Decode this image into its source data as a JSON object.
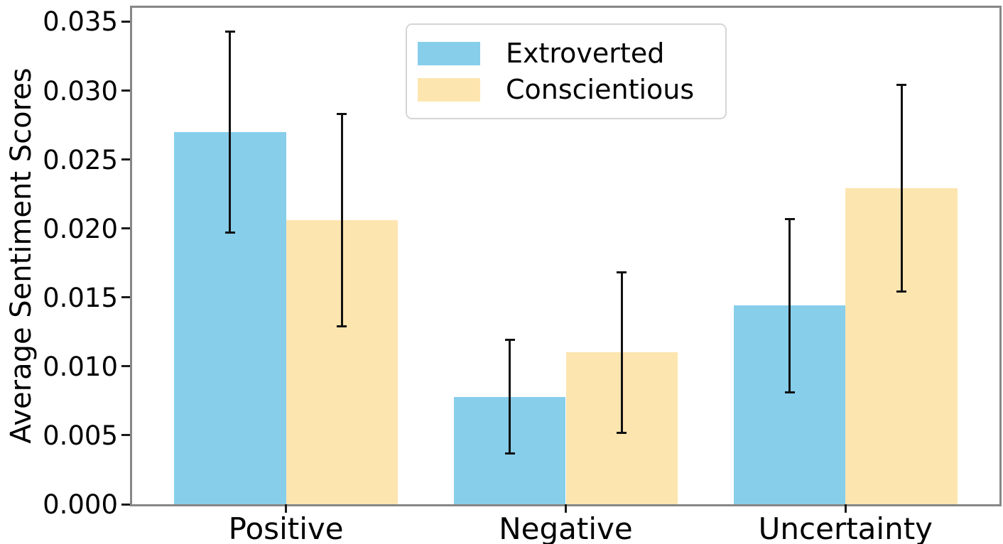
{
  "chart_data": {
    "type": "bar",
    "title": "",
    "xlabel": "",
    "ylabel": "Average Sentiment Scores",
    "categories": [
      "Positive",
      "Negative",
      "Uncertainty"
    ],
    "series": [
      {
        "name": "Extroverted",
        "color": "#87CEEB",
        "values": [
          0.027,
          0.0078,
          0.0144
        ],
        "errors": [
          0.0073,
          0.0041,
          0.0063
        ]
      },
      {
        "name": "Conscientious",
        "color": "#FDE5B0",
        "values": [
          0.0206,
          0.011,
          0.0229
        ],
        "errors": [
          0.0077,
          0.0058,
          0.0075
        ]
      }
    ],
    "ylim": [
      0,
      0.036
    ],
    "yticks": [
      0.0,
      0.005,
      0.01,
      0.015,
      0.02,
      0.025,
      0.03,
      0.035
    ],
    "ytick_labels": [
      "0.000",
      "0.005",
      "0.010",
      "0.015",
      "0.020",
      "0.025",
      "0.030",
      "0.035"
    ],
    "grid": false,
    "legend": {
      "position": "upper center-left",
      "entries": [
        "Extroverted",
        "Conscientious"
      ]
    },
    "error_bar_color": "#111111",
    "spine_color": "#878787"
  }
}
